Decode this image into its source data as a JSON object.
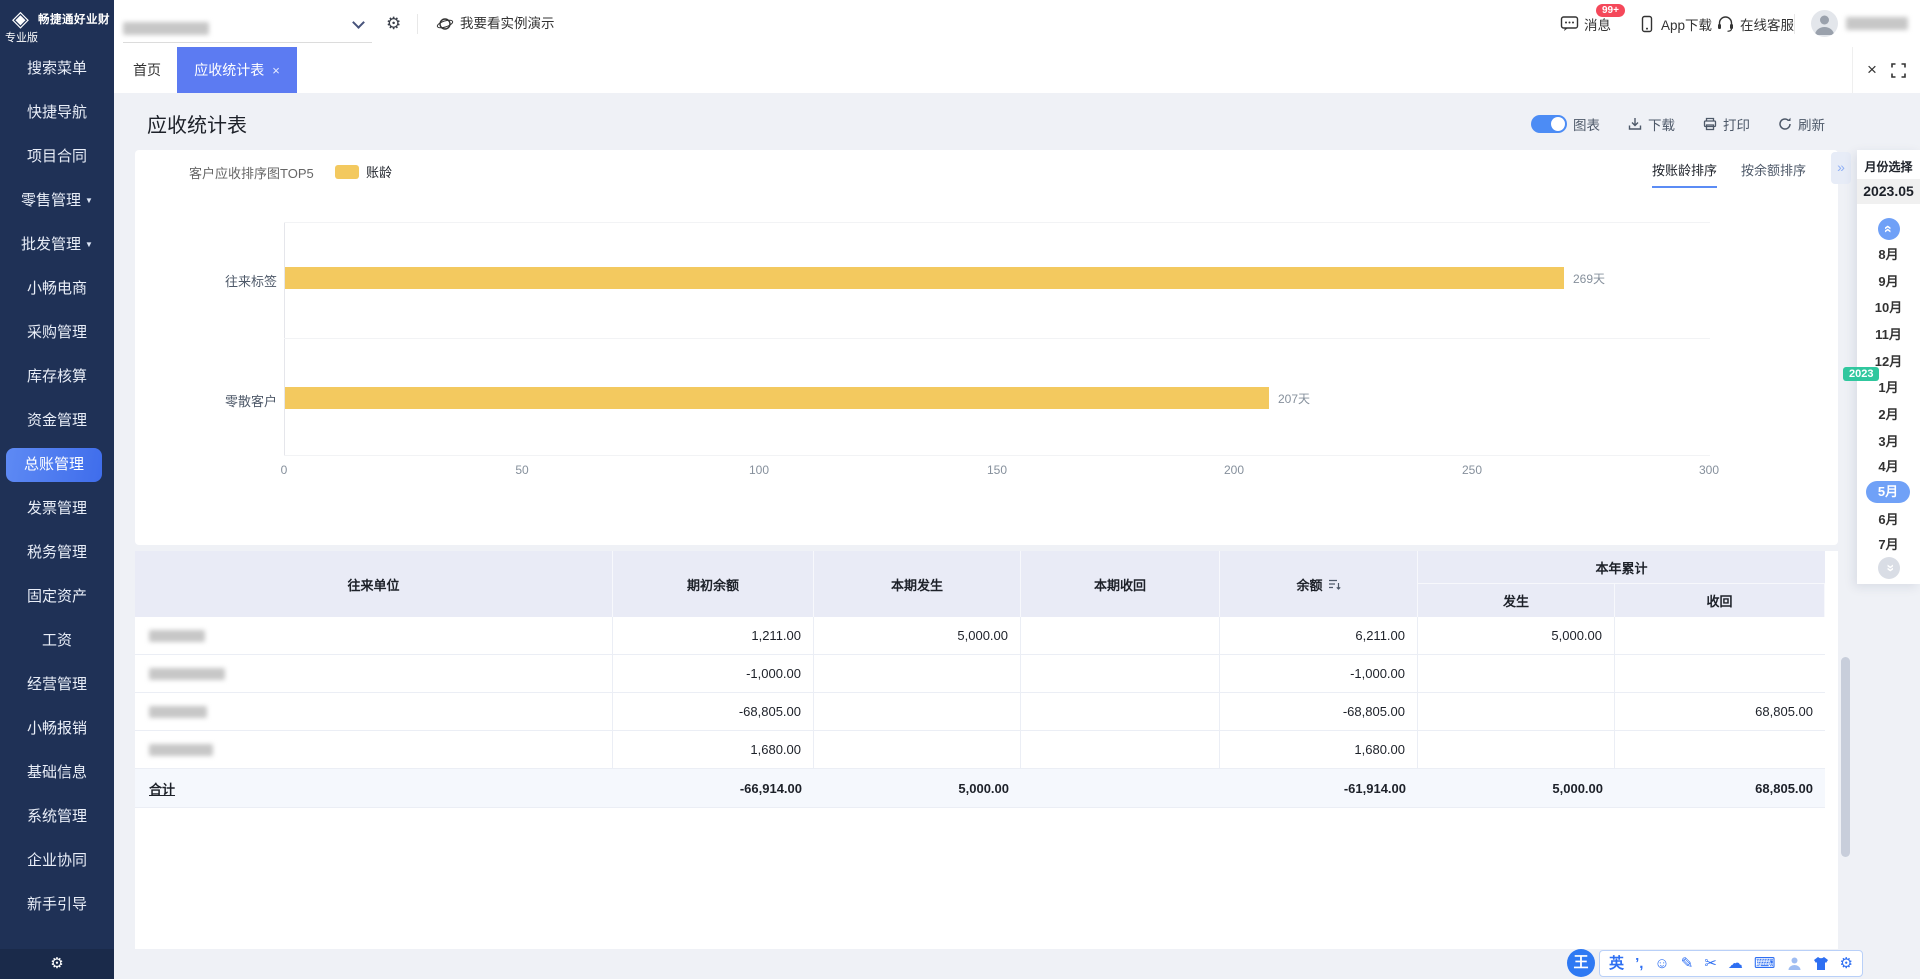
{
  "app": {
    "brand": "畅捷通好业财",
    "edition": "专业版"
  },
  "glyphs": {
    "logo": "◈",
    "caret_down": "▼",
    "gear": "⚙",
    "close": "×",
    "collapse": "»",
    "double_chevron": "«"
  },
  "topbar": {
    "demo_label": "我要看实例演示",
    "messages_label": "消息",
    "messages_badge": "99+",
    "app_download_label": "App下载",
    "support_label": "在线客服"
  },
  "tabs": [
    {
      "label": "首页"
    },
    {
      "label": "应收统计表",
      "active": true
    }
  ],
  "sidebar": {
    "items": [
      {
        "label": "搜索菜单"
      },
      {
        "label": "快捷导航"
      },
      {
        "label": "项目合同"
      },
      {
        "label": "零售管理",
        "arrow": true
      },
      {
        "label": "批发管理",
        "arrow": true
      },
      {
        "label": "小畅电商"
      },
      {
        "label": "采购管理"
      },
      {
        "label": "库存核算"
      },
      {
        "label": "资金管理"
      },
      {
        "label": "总账管理",
        "active": true
      },
      {
        "label": "发票管理"
      },
      {
        "label": "税务管理"
      },
      {
        "label": "固定资产"
      },
      {
        "label": "工资"
      },
      {
        "label": "经营管理"
      },
      {
        "label": "小畅报销"
      },
      {
        "label": "基础信息"
      },
      {
        "label": "系统管理"
      },
      {
        "label": "企业协同"
      },
      {
        "label": "新手引导"
      }
    ]
  },
  "page": {
    "title": "应收统计表",
    "toolbar": {
      "chart_label": "图表",
      "download_label": "下载",
      "print_label": "打印",
      "refresh_label": "刷新"
    }
  },
  "chart_panel": {
    "sort_by_age": "按账龄排序",
    "sort_by_balance": "按余额排序"
  },
  "chart_data": {
    "type": "bar",
    "orientation": "horizontal",
    "title": "客户应收排序图TOP5",
    "legend": [
      "账龄"
    ],
    "categories": [
      "往来标签",
      "零散客户"
    ],
    "values": [
      269,
      207
    ],
    "unit": "天",
    "value_labels": [
      "269天",
      "207天"
    ],
    "xlim": [
      0,
      300
    ],
    "xticks": [
      "0",
      "50",
      "100",
      "150",
      "200",
      "250",
      "300"
    ],
    "bar_color": "#F3C95F",
    "grid": "category-splitlines"
  },
  "table": {
    "columns": [
      "往来单位",
      "期初余额",
      "本期发生",
      "本期收回",
      "余额"
    ],
    "group_header": "本年累计",
    "sub_columns": [
      "发生",
      "收回"
    ],
    "rows": [
      {
        "name_redacted": true,
        "values": [
          "1,211.00",
          "5,000.00",
          "",
          "6,211.00",
          "5,000.00",
          ""
        ]
      },
      {
        "name_redacted": true,
        "values": [
          "-1,000.00",
          "",
          "",
          "-1,000.00",
          "",
          ""
        ]
      },
      {
        "name_redacted": true,
        "values": [
          "-68,805.00",
          "",
          "",
          "-68,805.00",
          "",
          "68,805.00"
        ]
      },
      {
        "name_redacted": true,
        "values": [
          "1,680.00",
          "",
          "",
          "1,680.00",
          "",
          ""
        ]
      }
    ],
    "total": {
      "label": "合计",
      "values": [
        "-66,914.00",
        "5,000.00",
        "",
        "-61,914.00",
        "5,000.00",
        "68,805.00"
      ]
    }
  },
  "month_panel": {
    "title": "月份选择",
    "current": "2023.05",
    "year_badge": "2023",
    "months": [
      "8月",
      "9月",
      "10月",
      "11月",
      "12月",
      "1月",
      "2月",
      "3月",
      "4月",
      "5月",
      "6月",
      "7月"
    ],
    "active_month": "5月"
  },
  "ime": {
    "logo": "王",
    "lang": "英",
    "punct": "’,",
    "smiley": "☺",
    "pencil": "✎",
    "scissors": "✂",
    "cloud": "☁",
    "keyboard": "⌨",
    "gear": "⚙"
  },
  "colors": {
    "accent_blue": "#5C7BF2",
    "bar_yellow": "#F3C95F",
    "sidebar_navy": "#1F3156",
    "badge_red": "#F5485A",
    "badge_green": "#30C79E",
    "month_active": "#70A1F7"
  }
}
